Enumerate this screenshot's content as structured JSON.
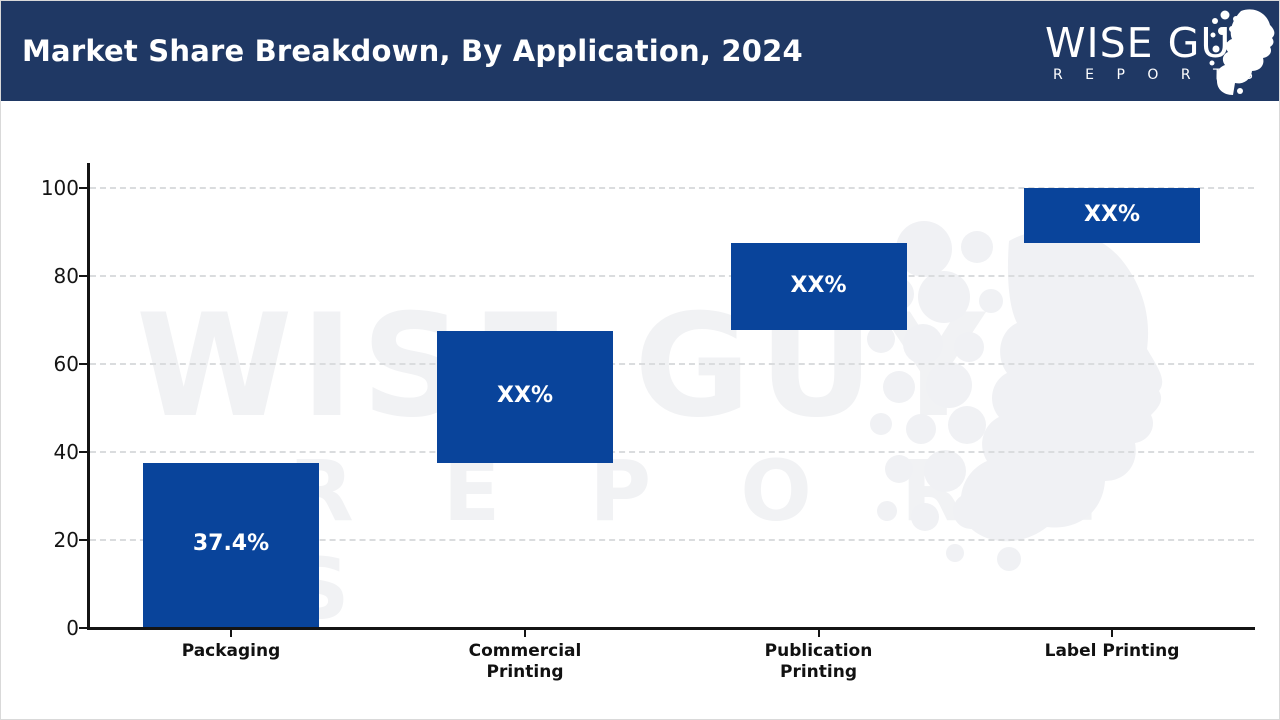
{
  "header": {
    "title": "Market Share Breakdown, By Application, 2024",
    "bg_color": "#1f3864",
    "logo": {
      "line1": "WISE GUY",
      "line2": "R E P O R T S"
    }
  },
  "watermark": {
    "line1": "WISE GUY",
    "line2": "R E P O R T S"
  },
  "colors": {
    "bar": "#09449b",
    "bar_label": "#ffffff",
    "gridline": "#dadcde",
    "axis": "#141414",
    "watermark": "#f1f2f4"
  },
  "chart_data": {
    "type": "bar",
    "subtype": "waterfall-stacked-market-share",
    "title": "Market Share Breakdown, By Application, 2024",
    "categories": [
      "Packaging",
      "Commercial Printing",
      "Publication Printing",
      "Label Printing"
    ],
    "series": [
      {
        "name": "Market share by application",
        "segments": [
          {
            "category": "Packaging",
            "start": 0,
            "end": 37.4,
            "label": "37.4%"
          },
          {
            "category": "Commercial Printing",
            "start": 37.4,
            "end": 67.5,
            "label": "XX%"
          },
          {
            "category": "Publication Printing",
            "start": 67.5,
            "end": 87.3,
            "label": "XX%"
          },
          {
            "category": "Label Printing",
            "start": 87.3,
            "end": 99.8,
            "label": "XX%"
          }
        ]
      }
    ],
    "xlabel": "",
    "ylabel": "",
    "ylim": [
      0,
      100
    ],
    "yticks": [
      0,
      20,
      40,
      60,
      80,
      100
    ],
    "grid": "horizontal-dashed",
    "legend": "none",
    "bar_color": "#09449b"
  }
}
